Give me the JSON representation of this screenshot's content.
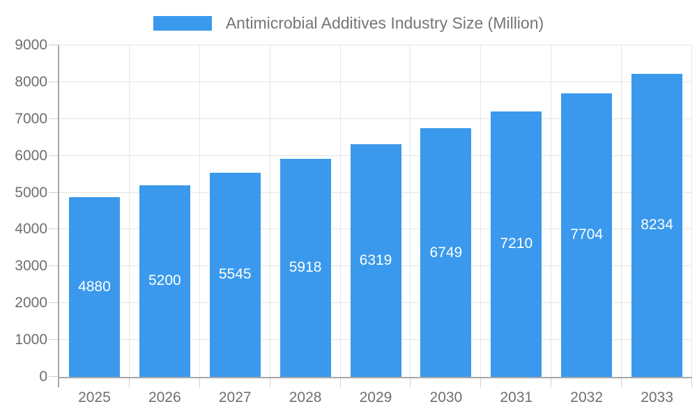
{
  "legend": {
    "label": "Antimicrobial Additives Industry Size (Million)",
    "swatch_color": "#3a99ec"
  },
  "chart_data": {
    "type": "bar",
    "title": "Antimicrobial Additives Industry Size (Million)",
    "series_name": "Antimicrobial Additives Industry Size (Million)",
    "categories": [
      "2025",
      "2026",
      "2027",
      "2028",
      "2029",
      "2030",
      "2031",
      "2032",
      "2033"
    ],
    "values": [
      4880,
      5200,
      5545,
      5918,
      6319,
      6749,
      7210,
      7704,
      8234
    ],
    "value_labels": [
      "4880",
      "5200",
      "5545",
      "5918",
      "6319",
      "6749",
      "7210",
      "7704",
      "8234"
    ],
    "xlabel": "",
    "ylabel": "",
    "ylim": [
      0,
      9000
    ],
    "ytick_step": 1000,
    "yticks": [
      0,
      1000,
      2000,
      3000,
      4000,
      5000,
      6000,
      7000,
      8000,
      9000
    ],
    "grid": "horizontal and vertical light gray gridlines, shown",
    "legend_position": "top-center",
    "colors": {
      "bar": "#3a99ec",
      "bar_value_text": "#ffffff",
      "axis_text": "#6f6f6f",
      "title_text": "#757575",
      "gridline": "#e6e6e6",
      "axis_line": "#a8a8a8",
      "background": "#ffffff"
    }
  }
}
